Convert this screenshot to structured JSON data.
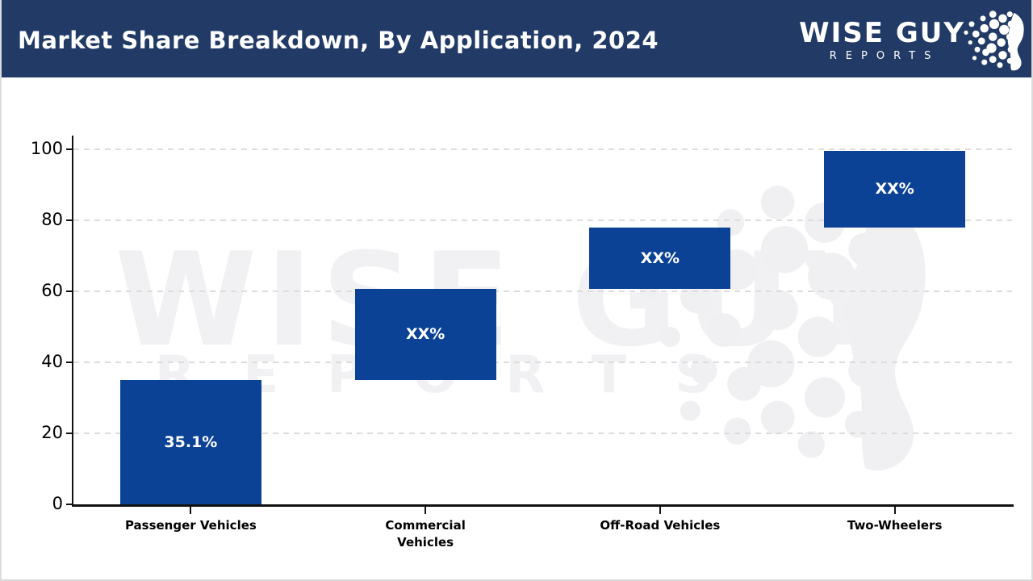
{
  "header": {
    "title": "Market Share Breakdown, By Application, 2024",
    "logo": {
      "line1": "WISE GUY",
      "line2": "REPORTS"
    }
  },
  "watermark": {
    "line1": "WISE GUY",
    "line2": "REPORTS"
  },
  "colors": {
    "header_bg": "#213a66",
    "bar": "#0b4295",
    "grid": "#dcdcdc",
    "axis": "#111111",
    "bar_label": "#ffffff",
    "watermark": "#f1f1f3"
  },
  "chart_data": {
    "type": "bar",
    "subtype": "waterfall",
    "title": "Market Share Breakdown, By Application, 2024",
    "categories": [
      "Passenger Vehicles",
      "Commercial\nVehicles",
      "Off-Road Vehicles",
      "Two-Wheelers"
    ],
    "segments": [
      {
        "category": "Passenger Vehicles",
        "start": 0,
        "end": 35.1,
        "label": "35.1%"
      },
      {
        "category": "Commercial Vehicles",
        "start": 35.1,
        "end": 60.7,
        "label": "XX%"
      },
      {
        "category": "Off-Road Vehicles",
        "start": 60.7,
        "end": 78.0,
        "label": "XX%"
      },
      {
        "category": "Two-Wheelers",
        "start": 78.0,
        "end": 99.5,
        "label": "XX%"
      }
    ],
    "yticks": [
      0,
      20,
      40,
      60,
      80,
      100
    ],
    "ylim": [
      0,
      105
    ],
    "xlabel": "",
    "ylabel": "",
    "grid": "horizontal-dashed",
    "legend": "none"
  }
}
